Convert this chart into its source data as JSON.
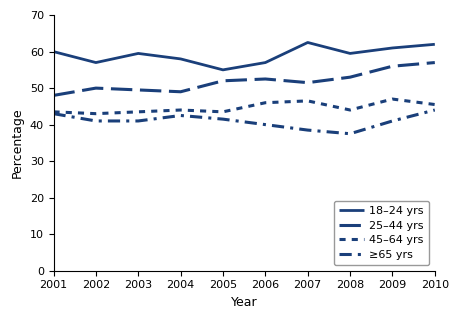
{
  "years": [
    2001,
    2002,
    2003,
    2004,
    2005,
    2006,
    2007,
    2008,
    2009,
    2010
  ],
  "series": {
    "18-24 yrs": [
      60,
      57,
      59.5,
      58,
      55,
      57,
      62.5,
      59.5,
      61,
      62
    ],
    "25-44 yrs": [
      48,
      50,
      49.5,
      49,
      52,
      52.5,
      51.5,
      53,
      56,
      57
    ],
    "45-64 yrs": [
      43.5,
      43,
      43.5,
      44,
      43.5,
      46,
      46.5,
      44,
      47,
      45.5
    ],
    ">=65 yrs": [
      43,
      41,
      41,
      42.5,
      41.5,
      40,
      38.5,
      37.5,
      41,
      44
    ]
  },
  "color": "#1a3f7a",
  "xlabel": "Year",
  "ylabel": "Percentage",
  "ylim": [
    0,
    70
  ],
  "yticks": [
    0,
    10,
    20,
    30,
    40,
    50,
    60,
    70
  ],
  "legend_labels": [
    "18–24 yrs",
    "25–44 yrs",
    "45–64 yrs",
    "≥65 yrs"
  ],
  "legend_loc": "lower right",
  "figsize": [
    4.6,
    3.2
  ],
  "dpi": 100
}
